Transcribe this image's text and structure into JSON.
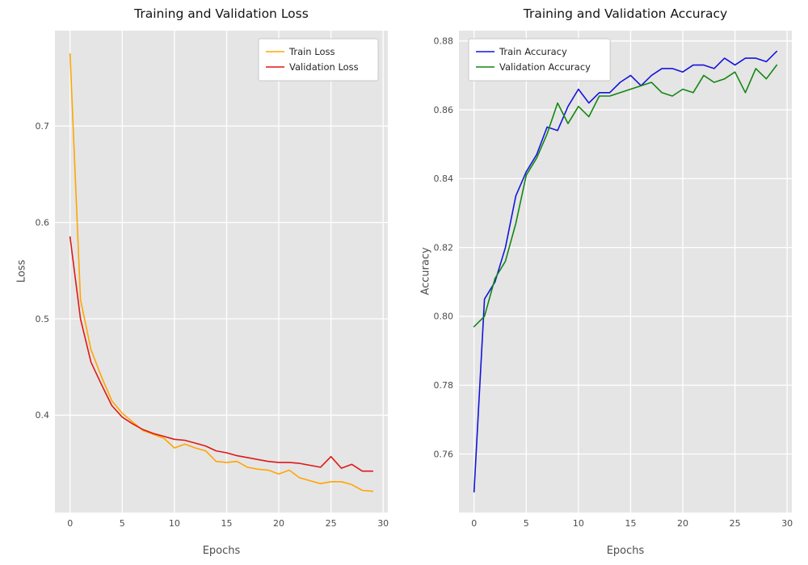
{
  "figure": {
    "background": "#ffffff",
    "axes_background": "#e5e5e5",
    "grid_color": "#ffffff"
  },
  "chart_data": [
    {
      "type": "line",
      "title": "Training and Validation Loss",
      "xlabel": "Epochs",
      "ylabel": "Loss",
      "xlim": [
        -1.45,
        30.45
      ],
      "ylim": [
        0.299,
        0.799
      ],
      "xticks": [
        0,
        5,
        10,
        15,
        20,
        25,
        30
      ],
      "xticklabels": [
        "0",
        "5",
        "10",
        "15",
        "20",
        "25",
        "30"
      ],
      "yticks": [
        0.4,
        0.5,
        0.6,
        0.7
      ],
      "yticklabels": [
        "0.4",
        "0.5",
        "0.6",
        "0.7"
      ],
      "grid": true,
      "legend_position": "top-right",
      "x": [
        0,
        1,
        2,
        3,
        4,
        5,
        6,
        7,
        8,
        9,
        10,
        11,
        12,
        13,
        14,
        15,
        16,
        17,
        18,
        19,
        20,
        21,
        22,
        23,
        24,
        25,
        26,
        27,
        28,
        29
      ],
      "series": [
        {
          "name": "Train Loss",
          "color": "#FFA500",
          "values": [
            0.775,
            0.52,
            0.468,
            0.44,
            0.415,
            0.402,
            0.393,
            0.384,
            0.38,
            0.376,
            0.366,
            0.37,
            0.366,
            0.363,
            0.352,
            0.351,
            0.352,
            0.346,
            0.344,
            0.343,
            0.339,
            0.343,
            0.335,
            0.332,
            0.329,
            0.331,
            0.331,
            0.328,
            0.322,
            0.321
          ]
        },
        {
          "name": "Validation Loss",
          "color": "#E01717",
          "values": [
            0.585,
            0.5,
            0.455,
            0.432,
            0.41,
            0.398,
            0.391,
            0.385,
            0.381,
            0.378,
            0.375,
            0.374,
            0.371,
            0.368,
            0.363,
            0.361,
            0.358,
            0.356,
            0.354,
            0.352,
            0.351,
            0.351,
            0.35,
            0.348,
            0.346,
            0.357,
            0.345,
            0.349,
            0.342,
            0.342
          ]
        }
      ]
    },
    {
      "type": "line",
      "title": "Training and Validation Accuracy",
      "xlabel": "Epochs",
      "ylabel": "Accuracy",
      "xlim": [
        -1.45,
        30.45
      ],
      "ylim": [
        0.743,
        0.883
      ],
      "xticks": [
        0,
        5,
        10,
        15,
        20,
        25,
        30
      ],
      "xticklabels": [
        "0",
        "5",
        "10",
        "15",
        "20",
        "25",
        "30"
      ],
      "yticks": [
        0.76,
        0.78,
        0.8,
        0.82,
        0.84,
        0.86,
        0.88
      ],
      "yticklabels": [
        "0.76",
        "0.78",
        "0.80",
        "0.82",
        "0.84",
        "0.86",
        "0.88"
      ],
      "grid": true,
      "legend_position": "top-left",
      "x": [
        0,
        1,
        2,
        3,
        4,
        5,
        6,
        7,
        8,
        9,
        10,
        11,
        12,
        13,
        14,
        15,
        16,
        17,
        18,
        19,
        20,
        21,
        22,
        23,
        24,
        25,
        26,
        27,
        28,
        29
      ],
      "series": [
        {
          "name": "Train Accuracy",
          "color": "#1414DB",
          "values": [
            0.749,
            0.805,
            0.81,
            0.82,
            0.835,
            0.842,
            0.847,
            0.855,
            0.854,
            0.861,
            0.866,
            0.862,
            0.865,
            0.865,
            0.868,
            0.87,
            0.867,
            0.87,
            0.872,
            0.872,
            0.871,
            0.873,
            0.873,
            0.872,
            0.875,
            0.873,
            0.875,
            0.875,
            0.874,
            0.877
          ]
        },
        {
          "name": "Validation Accuracy",
          "color": "#138613",
          "values": [
            0.797,
            0.8,
            0.811,
            0.816,
            0.827,
            0.841,
            0.846,
            0.853,
            0.862,
            0.856,
            0.861,
            0.858,
            0.864,
            0.864,
            0.865,
            0.866,
            0.867,
            0.868,
            0.865,
            0.864,
            0.866,
            0.865,
            0.87,
            0.868,
            0.869,
            0.871,
            0.865,
            0.872,
            0.869,
            0.873
          ]
        }
      ]
    }
  ]
}
